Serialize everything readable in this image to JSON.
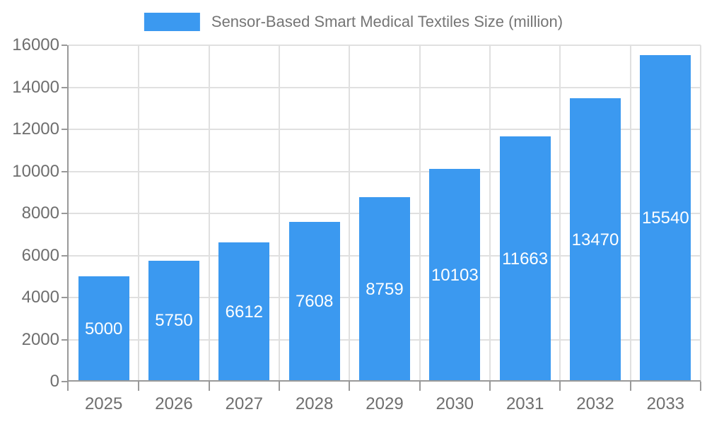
{
  "chart_data": {
    "type": "bar",
    "title": "Sensor-Based Smart Medical Textiles Size (million)",
    "categories": [
      "2025",
      "2026",
      "2027",
      "2028",
      "2029",
      "2030",
      "2031",
      "2032",
      "2033"
    ],
    "values": [
      5000,
      5750,
      6612,
      7608,
      8759,
      10103,
      11663,
      13470,
      15540
    ],
    "xlabel": "",
    "ylabel": "",
    "ylim": [
      0,
      16000
    ],
    "ytick_step": 2000,
    "ytick_labels": [
      "0",
      "2000",
      "4000",
      "6000",
      "8000",
      "10000",
      "12000",
      "14000",
      "16000"
    ],
    "grid": true,
    "legend_position": "top-center",
    "colors": {
      "bar": "#3B99F0",
      "bar_value_label": "#FFFFFF",
      "axis_text": "#6E6E6E",
      "legend_text": "#757575",
      "grid_line": "#E0E0E0",
      "axis_line": "#999999",
      "background": "#FFFFFF"
    }
  }
}
